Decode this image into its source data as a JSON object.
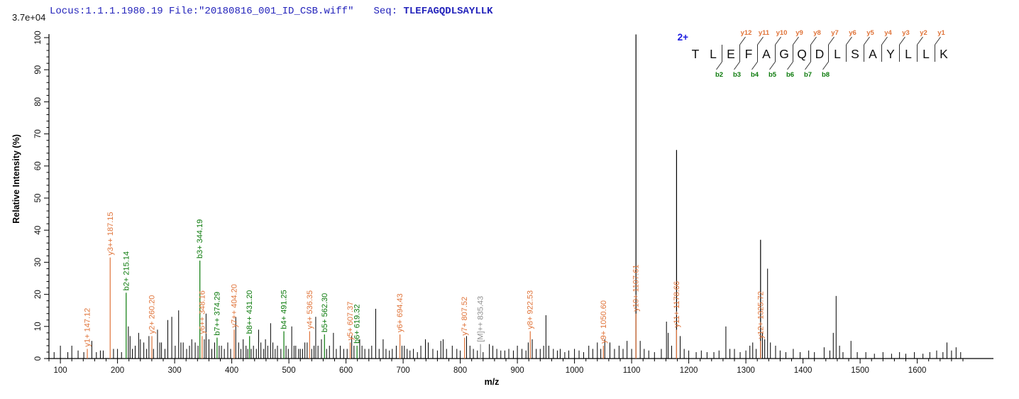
{
  "header": {
    "locus_file": "Locus:1.1.1.1980.19 File:\"20180816_001_ID_CSB.wiff\"",
    "seq_label": "Seq:",
    "seq_value": "TLEFAGQDLSAYLLK"
  },
  "scale_note": "3.7e+04",
  "colors": {
    "y_ion": "#E0743A",
    "b_ion": "#0B7A0B",
    "precursor": "#8f8f8f",
    "peak": "#000000",
    "axis": "#000000",
    "header_blue": "#2323bb",
    "charge_blue": "#1C1CE0",
    "divider": "#333333"
  },
  "chart_data": {
    "type": "bar",
    "title": "MS/MS fragmentation spectrum",
    "xlabel": "m/z",
    "ylabel": "Relative  Intensity (%)",
    "intensity_scale_max": "3.7e+04",
    "xlim": [
      80,
      1732
    ],
    "ylim": [
      0,
      100
    ],
    "x_major_step": 100,
    "x_minor_step": 20,
    "x_label_ticks": [
      100,
      200,
      300,
      400,
      500,
      600,
      700,
      800,
      900,
      1000,
      1100,
      1200,
      1300,
      1400,
      1500,
      1600
    ],
    "y_major_step": 10,
    "y_minor_step": 2,
    "grid": false,
    "precursor_charge": "2+",
    "peptide": {
      "sequence": "TLEFAGQDLSAYLLK",
      "y_ions": [
        12,
        11,
        10,
        9,
        8,
        7,
        6,
        5,
        4,
        3,
        2,
        1
      ],
      "b_ions": [
        2,
        3,
        4,
        5,
        6,
        7,
        8
      ]
    },
    "annotated_peaks": [
      {
        "label": "y1+ 147.12",
        "ion": "y1+",
        "mz": 147.12,
        "type": "y",
        "peak_pct": 3,
        "anchor_pct": 3
      },
      {
        "label": "y3++ 187.15",
        "ion": "y3++",
        "mz": 187.15,
        "type": "y",
        "peak_pct": 31.5,
        "anchor_pct": 31.5
      },
      {
        "label": "b2+ 215.14",
        "ion": "b2+",
        "mz": 215.14,
        "type": "b",
        "peak_pct": 20.5,
        "anchor_pct": 20.5
      },
      {
        "label": "y2+ 260.20",
        "ion": "y2+",
        "mz": 260.2,
        "type": "y",
        "peak_pct": 7,
        "anchor_pct": 7
      },
      {
        "label": "b3+ 344.19",
        "ion": "b3+",
        "mz": 344.19,
        "type": "b",
        "peak_pct": 30.5,
        "anchor_pct": 30.5
      },
      {
        "label": "y6++ 348.16",
        "ion": "y6++",
        "mz": 348.16,
        "type": "y",
        "peak_pct": 7,
        "anchor_pct": 7
      },
      {
        "label": "b7++ 374.29",
        "ion": "b7++",
        "mz": 374.29,
        "type": "b",
        "peak_pct": 6.5,
        "anchor_pct": 6.5
      },
      {
        "label": "y7++ 404.20",
        "ion": "y7++",
        "mz": 404.2,
        "type": "y",
        "peak_pct": 9,
        "anchor_pct": 9
      },
      {
        "label": "b8++ 431.20",
        "ion": "b8++",
        "mz": 431.2,
        "type": "b",
        "peak_pct": 7,
        "anchor_pct": 7
      },
      {
        "label": "b4+ 491.25",
        "ion": "b4+",
        "mz": 491.25,
        "type": "b",
        "peak_pct": 8.5,
        "anchor_pct": 8.5
      },
      {
        "label": "y4+ 536.35",
        "ion": "y4+",
        "mz": 536.35,
        "type": "y",
        "peak_pct": 8.5,
        "anchor_pct": 8.5
      },
      {
        "label": "b5+ 562.30",
        "ion": "b5+",
        "mz": 562.3,
        "type": "b",
        "peak_pct": 7.5,
        "anchor_pct": 7.5
      },
      {
        "label": "y5+ 607.37",
        "ion": "y5+",
        "mz": 607.37,
        "type": "y",
        "peak_pct": 5,
        "anchor_pct": 5
      },
      {
        "label": "b6+ 619.32",
        "ion": "b6+",
        "mz": 619.32,
        "type": "b",
        "peak_pct": 4,
        "anchor_pct": 4
      },
      {
        "label": "y6+ 694.43",
        "ion": "y6+",
        "mz": 694.43,
        "type": "y",
        "peak_pct": 7.5,
        "anchor_pct": 7.5
      },
      {
        "label": "y7+ 807.52",
        "ion": "y7+",
        "mz": 807.52,
        "type": "y",
        "peak_pct": 6.5,
        "anchor_pct": 6.5
      },
      {
        "label": "[M]++ 835.43",
        "ion": "[M]++",
        "mz": 835.43,
        "type": "M",
        "peak_pct": 4.5,
        "anchor_pct": 4.5
      },
      {
        "label": "y8+ 922.53",
        "ion": "y8+",
        "mz": 922.53,
        "type": "y",
        "peak_pct": 8.5,
        "anchor_pct": 8.5
      },
      {
        "label": "y9+ 1050.60",
        "ion": "y9+",
        "mz": 1050.6,
        "type": "y",
        "peak_pct": 4,
        "anchor_pct": 4
      },
      {
        "label": "y10+ 1107.61",
        "ion": "y10+",
        "mz": 1107.61,
        "type": "y",
        "peak_pct": 101,
        "anchor_pct": 14
      },
      {
        "label": "y11+ 1178.66",
        "ion": "y11+",
        "mz": 1178.66,
        "type": "y",
        "peak_pct": 65,
        "anchor_pct": 9
      },
      {
        "label": "y12+ 1325.72",
        "ion": "y12+",
        "mz": 1325.72,
        "type": "y",
        "peak_pct": 37,
        "anchor_pct": 5.5
      }
    ],
    "background_peaks": [
      [
        89,
        2
      ],
      [
        100,
        4
      ],
      [
        113,
        2
      ],
      [
        120,
        4
      ],
      [
        131,
        2.5
      ],
      [
        141,
        2
      ],
      [
        155,
        5.5
      ],
      [
        163,
        2
      ],
      [
        170,
        2.5
      ],
      [
        175,
        2.5
      ],
      [
        193,
        3
      ],
      [
        200,
        3
      ],
      [
        207,
        2
      ],
      [
        219,
        10
      ],
      [
        222,
        7
      ],
      [
        226,
        3
      ],
      [
        231,
        4
      ],
      [
        237,
        8
      ],
      [
        240,
        6
      ],
      [
        246,
        5
      ],
      [
        251,
        3
      ],
      [
        255,
        7
      ],
      [
        263,
        3
      ],
      [
        270,
        9
      ],
      [
        274,
        5
      ],
      [
        277,
        5
      ],
      [
        283,
        3
      ],
      [
        288,
        12
      ],
      [
        295,
        13
      ],
      [
        301,
        4
      ],
      [
        307,
        15
      ],
      [
        311,
        5
      ],
      [
        315,
        5
      ],
      [
        321,
        3
      ],
      [
        326,
        4
      ],
      [
        330,
        6
      ],
      [
        336,
        5
      ],
      [
        341,
        4
      ],
      [
        352,
        6
      ],
      [
        355,
        14
      ],
      [
        360,
        6
      ],
      [
        365,
        3
      ],
      [
        370,
        5
      ],
      [
        378,
        4
      ],
      [
        382,
        4
      ],
      [
        387,
        3
      ],
      [
        393,
        5
      ],
      [
        398,
        3
      ],
      [
        407,
        13
      ],
      [
        412,
        5
      ],
      [
        416,
        3
      ],
      [
        420,
        6
      ],
      [
        425,
        4
      ],
      [
        428,
        3
      ],
      [
        434,
        3
      ],
      [
        438,
        4
      ],
      [
        443,
        3
      ],
      [
        447,
        9
      ],
      [
        451,
        5
      ],
      [
        456,
        3
      ],
      [
        459,
        6
      ],
      [
        463,
        4
      ],
      [
        468,
        11
      ],
      [
        472,
        5
      ],
      [
        476,
        3
      ],
      [
        480,
        4
      ],
      [
        486,
        3
      ],
      [
        495,
        4
      ],
      [
        499,
        3
      ],
      [
        505,
        10
      ],
      [
        509,
        4
      ],
      [
        512,
        4
      ],
      [
        517,
        3
      ],
      [
        520,
        3
      ],
      [
        524,
        3
      ],
      [
        528,
        5
      ],
      [
        532,
        5
      ],
      [
        540,
        3
      ],
      [
        544,
        4
      ],
      [
        547,
        13
      ],
      [
        551,
        4
      ],
      [
        557,
        6
      ],
      [
        566,
        3
      ],
      [
        571,
        4
      ],
      [
        578,
        8
      ],
      [
        583,
        3
      ],
      [
        590,
        4
      ],
      [
        596,
        3
      ],
      [
        602,
        3
      ],
      [
        610,
        7
      ],
      [
        614,
        4
      ],
      [
        624,
        6
      ],
      [
        628,
        4
      ],
      [
        633,
        3
      ],
      [
        640,
        3
      ],
      [
        645,
        4
      ],
      [
        652,
        15.5
      ],
      [
        658,
        3
      ],
      [
        665,
        6
      ],
      [
        670,
        3
      ],
      [
        676,
        2.5
      ],
      [
        681,
        3
      ],
      [
        688,
        4
      ],
      [
        698,
        4
      ],
      [
        702,
        4
      ],
      [
        707,
        3
      ],
      [
        712,
        2.5
      ],
      [
        718,
        3
      ],
      [
        725,
        2
      ],
      [
        731,
        4
      ],
      [
        739,
        6
      ],
      [
        744,
        5
      ],
      [
        752,
        3
      ],
      [
        760,
        2.5
      ],
      [
        766,
        5.5
      ],
      [
        770,
        6
      ],
      [
        776,
        3
      ],
      [
        786,
        4
      ],
      [
        794,
        3
      ],
      [
        800,
        2.5
      ],
      [
        811,
        7
      ],
      [
        817,
        4
      ],
      [
        823,
        3
      ],
      [
        830,
        2.5
      ],
      [
        840,
        2
      ],
      [
        851,
        4.5
      ],
      [
        857,
        4
      ],
      [
        864,
        3
      ],
      [
        871,
        2.5
      ],
      [
        878,
        2.5
      ],
      [
        885,
        3
      ],
      [
        893,
        2.5
      ],
      [
        900,
        4
      ],
      [
        908,
        3
      ],
      [
        915,
        2.5
      ],
      [
        919,
        5
      ],
      [
        926,
        6
      ],
      [
        933,
        3
      ],
      [
        940,
        3
      ],
      [
        946,
        4
      ],
      [
        950,
        13.5
      ],
      [
        955,
        4
      ],
      [
        963,
        3
      ],
      [
        970,
        2.5
      ],
      [
        975,
        3
      ],
      [
        983,
        2
      ],
      [
        990,
        2.5
      ],
      [
        1000,
        3
      ],
      [
        1008,
        2.5
      ],
      [
        1016,
        2
      ],
      [
        1025,
        4
      ],
      [
        1032,
        3
      ],
      [
        1040,
        5
      ],
      [
        1046,
        3
      ],
      [
        1053,
        6
      ],
      [
        1062,
        5
      ],
      [
        1070,
        3
      ],
      [
        1078,
        4
      ],
      [
        1085,
        3
      ],
      [
        1092,
        5.5
      ],
      [
        1100,
        3
      ],
      [
        1115,
        5.5
      ],
      [
        1122,
        3
      ],
      [
        1130,
        2.5
      ],
      [
        1140,
        2
      ],
      [
        1152,
        3
      ],
      [
        1161,
        11.5
      ],
      [
        1164,
        8
      ],
      [
        1170,
        4
      ],
      [
        1185,
        7
      ],
      [
        1192,
        3
      ],
      [
        1200,
        2.5
      ],
      [
        1213,
        2
      ],
      [
        1222,
        2.5
      ],
      [
        1232,
        2
      ],
      [
        1244,
        2
      ],
      [
        1253,
        2.5
      ],
      [
        1265,
        10
      ],
      [
        1272,
        3
      ],
      [
        1280,
        3
      ],
      [
        1290,
        2
      ],
      [
        1300,
        2.5
      ],
      [
        1307,
        4
      ],
      [
        1312,
        5
      ],
      [
        1318,
        3
      ],
      [
        1329,
        8
      ],
      [
        1333,
        6
      ],
      [
        1338,
        28
      ],
      [
        1343,
        5
      ],
      [
        1352,
        4
      ],
      [
        1360,
        2.5
      ],
      [
        1370,
        2
      ],
      [
        1383,
        3
      ],
      [
        1395,
        2
      ],
      [
        1410,
        2.5
      ],
      [
        1420,
        2
      ],
      [
        1437,
        3.5
      ],
      [
        1447,
        2.5
      ],
      [
        1453,
        8
      ],
      [
        1458,
        19.5
      ],
      [
        1464,
        4
      ],
      [
        1470,
        2
      ],
      [
        1484,
        5.5
      ],
      [
        1495,
        2
      ],
      [
        1510,
        2
      ],
      [
        1525,
        1.5
      ],
      [
        1540,
        2
      ],
      [
        1555,
        1.5
      ],
      [
        1569,
        2
      ],
      [
        1580,
        1.5
      ],
      [
        1595,
        2
      ],
      [
        1610,
        1.5
      ],
      [
        1622,
        2
      ],
      [
        1634,
        2.5
      ],
      [
        1645,
        2
      ],
      [
        1652,
        5
      ],
      [
        1660,
        2.5
      ],
      [
        1668,
        3.5
      ],
      [
        1676,
        2
      ]
    ]
  }
}
